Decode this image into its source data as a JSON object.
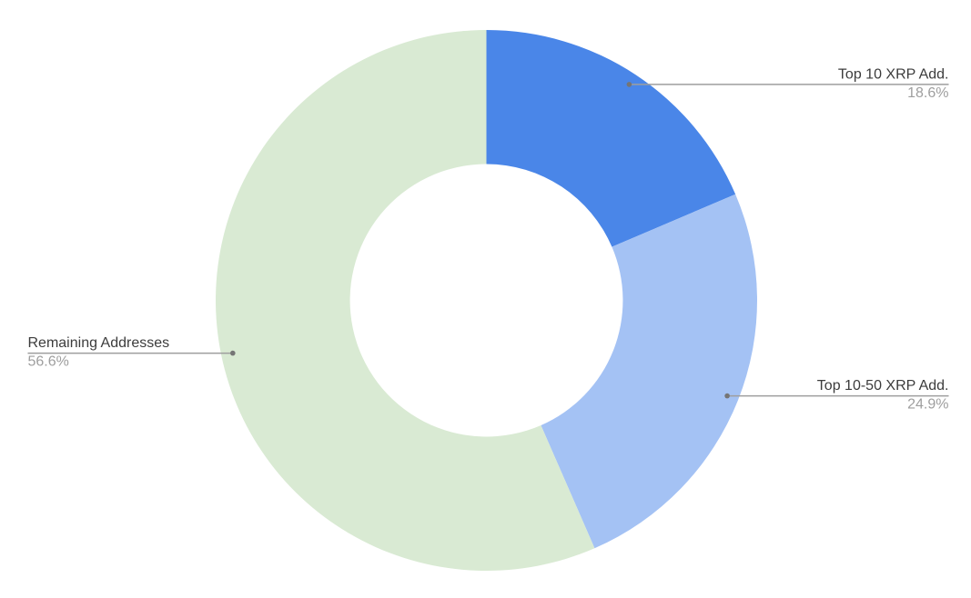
{
  "chart_data": {
    "type": "pie",
    "subtype": "donut",
    "pie_hole": 0.504,
    "start_angle_deg": 0,
    "direction": "clockwise",
    "categories": [
      "Top 10 XRP Add.",
      "Top 10-50 XRP Add.",
      "Remaining Addresses"
    ],
    "values": [
      18.6,
      24.9,
      56.6
    ],
    "percent_labels": [
      "18.6%",
      "24.9%",
      "56.6%"
    ],
    "colors": [
      "#4A86E8",
      "#A4C2F4",
      "#D9EAD3"
    ],
    "legend_position": "labeled-callouts",
    "background_color": "#ffffff",
    "label_text_color": "#3c3c3c",
    "percent_text_color": "#9e9e9e",
    "connector_line_color": "#9e9e9e",
    "connector_dot_color": "#757575",
    "title": "",
    "grid": false
  }
}
